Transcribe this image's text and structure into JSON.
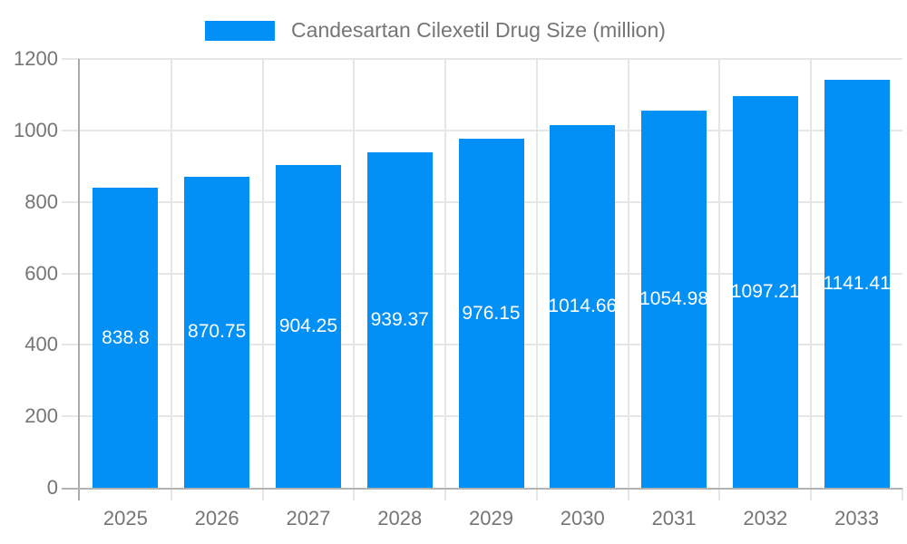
{
  "legend": {
    "label": "Candesartan Cilexetil Drug Size (million)"
  },
  "chart_data": {
    "type": "bar",
    "title": "Candesartan Cilexetil Drug Size (million)",
    "series_name": "Candesartan Cilexetil Drug Size (million)",
    "categories": [
      "2025",
      "2026",
      "2027",
      "2028",
      "2029",
      "2030",
      "2031",
      "2032",
      "2033"
    ],
    "values": [
      838.8,
      870.75,
      904.25,
      939.37,
      976.15,
      1014.66,
      1054.98,
      1097.21,
      1141.41
    ],
    "bar_labels": [
      "838.8",
      "870.75",
      "904.25",
      "939.37",
      "976.15",
      "1014.66",
      "1054.98",
      "1097.21",
      "1141.41"
    ],
    "xlabel": "",
    "ylabel": "",
    "ylim": [
      0,
      1200
    ],
    "yticks": [
      0,
      200,
      400,
      600,
      800,
      1000,
      1200
    ],
    "ytick_labels": [
      "0",
      "200",
      "400",
      "600",
      "800",
      "1000",
      "1200"
    ],
    "grid": true,
    "legend_position": "top-center",
    "colors": {
      "bar": "#0290f7",
      "axis_text": "#757575",
      "grid_line": "#e6e6e6",
      "axis_line": "#b3b3b3",
      "bar_label_text": "#ffffff",
      "background": "#ffffff"
    }
  }
}
